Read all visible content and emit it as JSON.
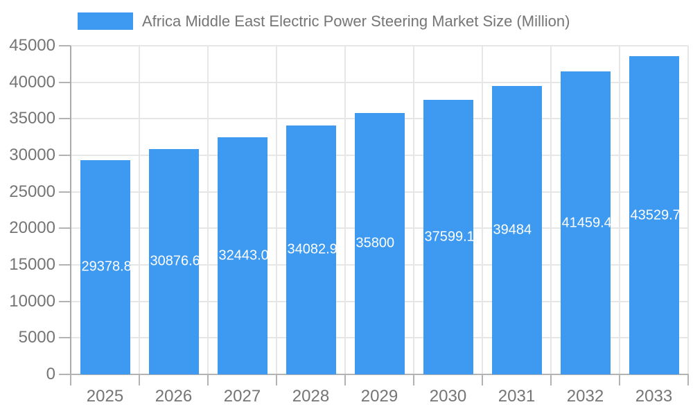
{
  "legend": {
    "label": "Africa Middle East Electric Power Steering Market Size (Million)"
  },
  "chart_data": {
    "type": "bar",
    "title": "Africa Middle East Electric Power Steering Market Size (Million)",
    "categories": [
      "2025",
      "2026",
      "2027",
      "2028",
      "2029",
      "2030",
      "2031",
      "2032",
      "2033"
    ],
    "values": [
      29378.8,
      30876.6,
      32443.0,
      34082.9,
      35800,
      37599.1,
      39484,
      41459.4,
      43529.7
    ],
    "bar_labels": [
      "29378.8",
      "30876.6",
      "32443.0",
      "34082.9",
      "35800",
      "37599.1",
      "39484",
      "41459.4",
      "43529.7"
    ],
    "xlabel": "",
    "ylabel": "",
    "ylim": [
      0,
      45000
    ],
    "ytick_labels": [
      "0",
      "5000",
      "10000",
      "15000",
      "20000",
      "25000",
      "30000",
      "35000",
      "40000",
      "45000"
    ],
    "ytick_values": [
      0,
      5000,
      10000,
      15000,
      20000,
      25000,
      30000,
      35000,
      40000,
      45000
    ],
    "grid": true,
    "legend_position": "top",
    "colors": {
      "bar": "#3D9AF0",
      "text": "#757575",
      "grid": "#e6e6e6",
      "axis": "#aaaaaa",
      "tick": "#b3b3b3",
      "bar_label": "#ffffff",
      "background": "#ffffff"
    }
  }
}
